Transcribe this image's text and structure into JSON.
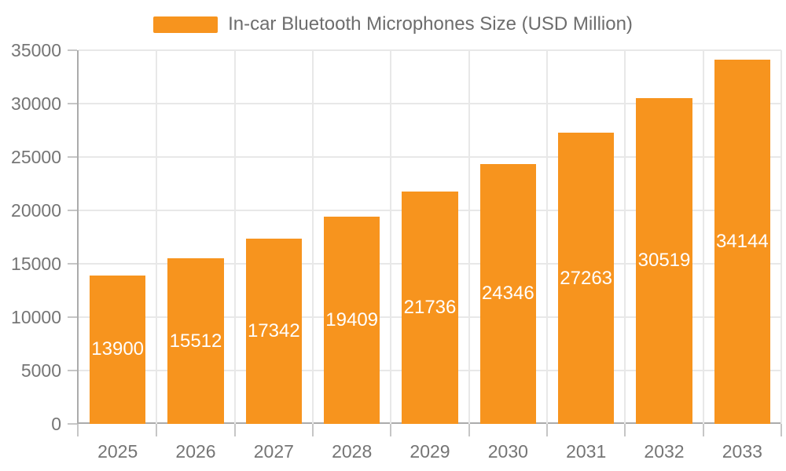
{
  "legend": {
    "label": "In-car Bluetooth Microphones Size (USD Million)",
    "swatch_color": "#F7941E"
  },
  "chart_data": {
    "type": "bar",
    "title": "In-car Bluetooth Microphones Size (USD Million)",
    "series_name": "In-car Bluetooth Microphones Size (USD Million)",
    "categories": [
      "2025",
      "2026",
      "2027",
      "2028",
      "2029",
      "2030",
      "2031",
      "2032",
      "2033"
    ],
    "values": [
      13900,
      15512,
      17342,
      19409,
      21736,
      24346,
      27263,
      30519,
      34144
    ],
    "value_labels": [
      "13900",
      "15512",
      "17342",
      "19409",
      "21736",
      "24346",
      "27263",
      "30519",
      "34144"
    ],
    "xlabel": "",
    "ylabel": "",
    "ylim": [
      0,
      35000
    ],
    "yticks": [
      0,
      5000,
      10000,
      15000,
      20000,
      25000,
      30000,
      35000
    ],
    "grid": true,
    "legend_position": "top",
    "value_label_position": "inside-center"
  },
  "colors": {
    "bar": "#F7941E",
    "bar_value_label": "#FFFFFF",
    "grid_line": "#E8E8E8",
    "axis_line": "#ABABAB",
    "tick_mark": "#C6C6C6",
    "tick_label": "#757575",
    "title_text": "#6D6D6D",
    "background": "#FFFFFF"
  }
}
